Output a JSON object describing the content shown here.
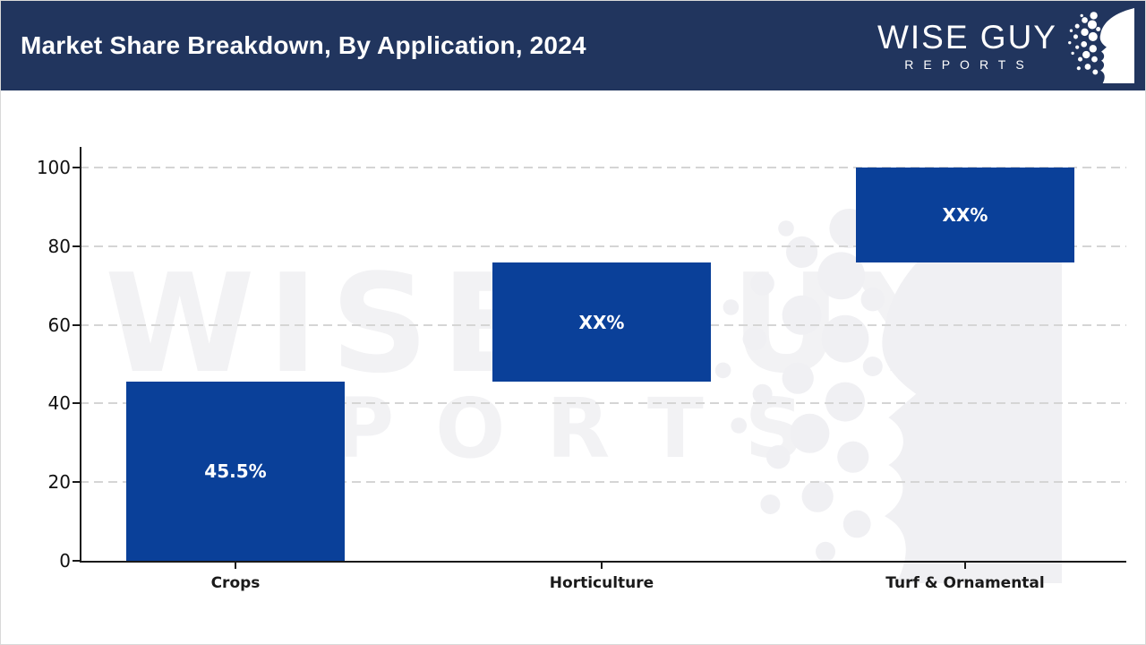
{
  "header": {
    "title": "Market Share Breakdown, By Application, 2024",
    "background": "#21355e",
    "logo": {
      "line1": "WISE GUY",
      "line2": "REPORTS"
    }
  },
  "watermark": {
    "line1": "WISE GUY",
    "line2": "REPORTS"
  },
  "chart_data": {
    "type": "bar",
    "subtype": "floating-segment (waterfall style, one segment per category)",
    "title": "Market Share Breakdown, By Application, 2024",
    "categories": [
      "Crops",
      "Horticulture",
      "Turf & Ornamental"
    ],
    "segments": [
      {
        "category": "Crops",
        "label": "45.5%",
        "start": 0,
        "end": 45.5
      },
      {
        "category": "Horticulture",
        "label": "XX%",
        "start": 45.5,
        "end": 75.8
      },
      {
        "category": "Turf & Ornamental",
        "label": "XX%",
        "start": 75.8,
        "end": 100
      }
    ],
    "xlabel": "",
    "ylabel": "",
    "ylim": [
      0,
      100
    ],
    "yticks": [
      0,
      20,
      40,
      60,
      80,
      100
    ],
    "grid": "dashed horizontal gridlines at y ticks",
    "legend": "none",
    "bar_color": "#0a4099",
    "bar_label_color": "#ffffff",
    "grid_color": "#d5d5d5",
    "axis_color": "#1a1a1a",
    "header_bg": "#21355e",
    "watermark_color": "#f2f2f4"
  }
}
